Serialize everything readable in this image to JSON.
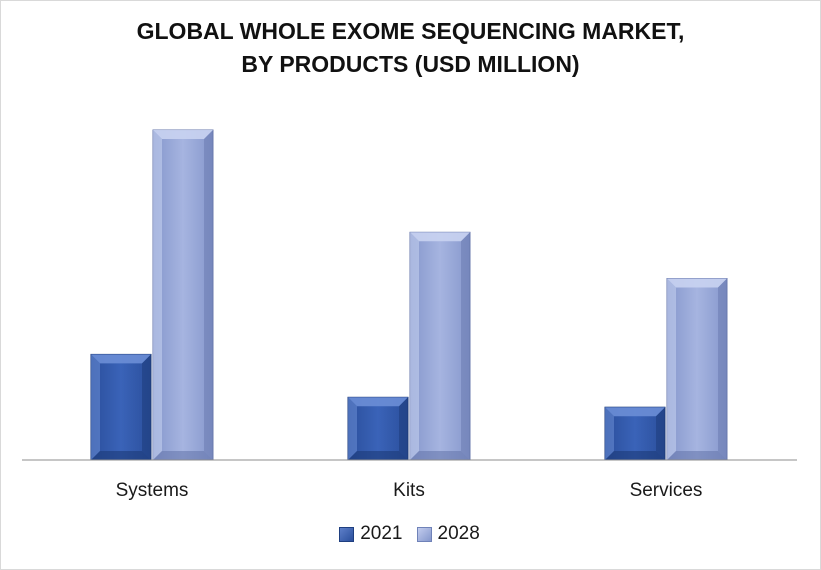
{
  "chart_data": {
    "type": "bar",
    "title": "GLOBAL WHOLE EXOME SEQUENCING MARKET,",
    "subtitle": "BY PRODUCTS (USD MILLION)",
    "categories": [
      "Systems",
      "Kits",
      "Services"
    ],
    "series": [
      {
        "name": "2021",
        "values": [
          32,
          19,
          16
        ],
        "color": "#3a5fb0"
      },
      {
        "name": "2028",
        "values": [
          100,
          69,
          55
        ],
        "color": "#9aaad8"
      }
    ],
    "ylim": [
      0,
      100
    ],
    "grid": false,
    "legend_position": "bottom-center",
    "style": "3d-bevel"
  }
}
